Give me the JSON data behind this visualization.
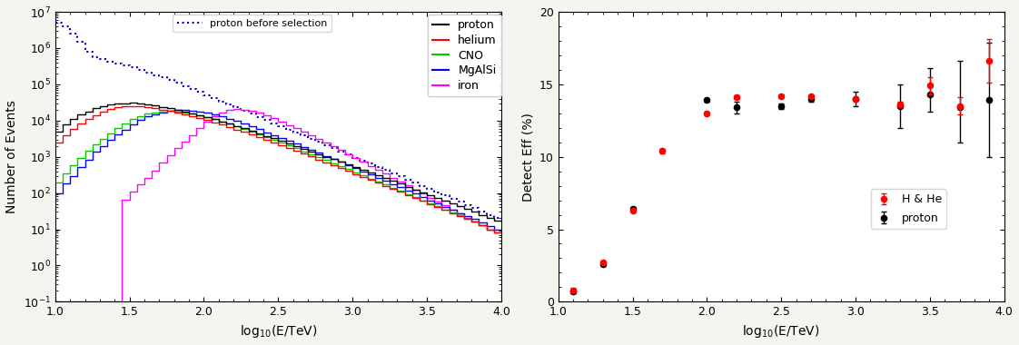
{
  "left_plot": {
    "xlabel": "log$_{10}$(E/TeV)",
    "ylabel": "Number of Events",
    "xlim": [
      1,
      4
    ],
    "ylim": [
      0.1,
      10000000.0
    ],
    "proton_before_bins": [
      1.0,
      1.05,
      1.1,
      1.15,
      1.2,
      1.25,
      1.3,
      1.35,
      1.4,
      1.45,
      1.5,
      1.55,
      1.6,
      1.65,
      1.7,
      1.75,
      1.8,
      1.85,
      1.9,
      1.95,
      2.0,
      2.05,
      2.1,
      2.15,
      2.2,
      2.25,
      2.3,
      2.35,
      2.4,
      2.45,
      2.5,
      2.55,
      2.6,
      2.65,
      2.7,
      2.75,
      2.8,
      2.85,
      2.9,
      2.95,
      3.0,
      3.05,
      3.1,
      3.15,
      3.2,
      3.25,
      3.3,
      3.35,
      3.4,
      3.45,
      3.5,
      3.55,
      3.6,
      3.65,
      3.7,
      3.75,
      3.8,
      3.85,
      3.9,
      3.95,
      4.0
    ],
    "proton_before_vals": [
      5000000.0,
      4000000.0,
      2500000.0,
      1500000.0,
      800000.0,
      550000.0,
      500000.0,
      430000.0,
      380000.0,
      330000.0,
      290000.0,
      250000.0,
      210000.0,
      180000.0,
      155000.0,
      130000.0,
      110000.0,
      90000.0,
      75000.0,
      62000.0,
      51000.0,
      42000.0,
      34000.0,
      28000.0,
      23000.0,
      19000.0,
      15500.0,
      12700.0,
      10400.0,
      8500.0,
      7000.0,
      5700.0,
      4700.0,
      3850.0,
      3150.0,
      2600.0,
      2100.0,
      1750.0,
      1420.0,
      1160.0,
      950.0,
      780.0,
      640.0,
      520.0,
      430.0,
      350.0,
      285.0,
      233.0,
      190.0,
      155.0,
      127.0,
      104.0,
      85.0,
      69.0,
      57.0,
      46.0,
      38.0,
      31.0,
      25.0,
      20.0
    ],
    "proton_bins": [
      1.0,
      1.05,
      1.1,
      1.15,
      1.2,
      1.25,
      1.3,
      1.35,
      1.4,
      1.45,
      1.5,
      1.55,
      1.6,
      1.65,
      1.7,
      1.75,
      1.8,
      1.85,
      1.9,
      1.95,
      2.0,
      2.05,
      2.1,
      2.15,
      2.2,
      2.25,
      2.3,
      2.35,
      2.4,
      2.45,
      2.5,
      2.55,
      2.6,
      2.65,
      2.7,
      2.75,
      2.8,
      2.85,
      2.9,
      2.95,
      3.0,
      3.05,
      3.1,
      3.15,
      3.2,
      3.25,
      3.3,
      3.35,
      3.4,
      3.45,
      3.5,
      3.55,
      3.6,
      3.65,
      3.7,
      3.75,
      3.8,
      3.85,
      3.9,
      3.95,
      4.0
    ],
    "proton_vals": [
      5000,
      8000,
      11000,
      14500,
      18000,
      22000,
      25000,
      27500,
      29000,
      30000,
      30500,
      29500,
      28000,
      26000,
      24000,
      22000,
      20000,
      18000,
      16000,
      14000,
      12500,
      11000,
      9500,
      8200,
      7100,
      6100,
      5200,
      4500,
      3800,
      3250,
      2750,
      2350,
      1980,
      1680,
      1420,
      1200,
      1010,
      855,
      720,
      605,
      510,
      430,
      360,
      305,
      255,
      215,
      180,
      150,
      126,
      106,
      89,
      74,
      62,
      52,
      43,
      36,
      30,
      25,
      21,
      17
    ],
    "helium_bins": [
      1.0,
      1.05,
      1.1,
      1.15,
      1.2,
      1.25,
      1.3,
      1.35,
      1.4,
      1.45,
      1.5,
      1.55,
      1.6,
      1.65,
      1.7,
      1.75,
      1.8,
      1.85,
      1.9,
      1.95,
      2.0,
      2.05,
      2.1,
      2.15,
      2.2,
      2.25,
      2.3,
      2.35,
      2.4,
      2.45,
      2.5,
      2.55,
      2.6,
      2.65,
      2.7,
      2.75,
      2.8,
      2.85,
      2.9,
      2.95,
      3.0,
      3.05,
      3.1,
      3.15,
      3.2,
      3.25,
      3.3,
      3.35,
      3.4,
      3.45,
      3.5,
      3.55,
      3.6,
      3.65,
      3.7,
      3.75,
      3.8,
      3.85,
      3.9,
      3.95,
      4.0
    ],
    "helium_vals": [
      2500,
      4000,
      6000,
      8500,
      11000,
      14000,
      17500,
      20500,
      23000,
      24500,
      25500,
      25000,
      23500,
      22000,
      20000,
      18500,
      17000,
      15000,
      13500,
      12000,
      10500,
      9000,
      7800,
      6700,
      5700,
      4900,
      4150,
      3500,
      2950,
      2480,
      2080,
      1750,
      1460,
      1220,
      1020,
      850,
      710,
      590,
      490,
      405,
      335,
      278,
      230,
      190,
      158,
      130,
      108,
      89,
      74,
      61,
      50,
      42,
      34,
      28,
      23,
      19,
      16,
      13,
      10,
      8
    ],
    "CNO_bins": [
      1.0,
      1.05,
      1.1,
      1.15,
      1.2,
      1.25,
      1.3,
      1.35,
      1.4,
      1.45,
      1.5,
      1.55,
      1.6,
      1.65,
      1.7,
      1.75,
      1.8,
      1.85,
      1.9,
      1.95,
      2.0,
      2.05,
      2.1,
      2.15,
      2.2,
      2.25,
      2.3,
      2.35,
      2.4,
      2.45,
      2.5,
      2.55,
      2.6,
      2.65,
      2.7,
      2.75,
      2.8,
      2.85,
      2.9,
      2.95,
      3.0,
      3.05,
      3.1,
      3.15,
      3.2,
      3.25,
      3.3,
      3.35,
      3.4,
      3.45,
      3.5,
      3.55,
      3.6,
      3.65,
      3.7,
      3.75,
      3.8,
      3.85,
      3.9,
      3.95,
      4.0
    ],
    "CNO_vals": [
      200,
      350,
      600,
      950,
      1500,
      2200,
      3200,
      4500,
      6200,
      8300,
      11000,
      13500,
      15500,
      17000,
      18000,
      18500,
      18000,
      17000,
      15500,
      14000,
      12500,
      11000,
      9500,
      8100,
      6900,
      5850,
      4950,
      4150,
      3500,
      2940,
      2460,
      2050,
      1710,
      1420,
      1180,
      980,
      810,
      670,
      550,
      455,
      375,
      308,
      253,
      208,
      170,
      140,
      115,
      94,
      77,
      63,
      52,
      43,
      35,
      29,
      24,
      19,
      16,
      13,
      10,
      8
    ],
    "MgAlSi_bins": [
      1.0,
      1.05,
      1.1,
      1.15,
      1.2,
      1.25,
      1.3,
      1.35,
      1.4,
      1.45,
      1.5,
      1.55,
      1.6,
      1.65,
      1.7,
      1.75,
      1.8,
      1.85,
      1.9,
      1.95,
      2.0,
      2.05,
      2.1,
      2.15,
      2.2,
      2.25,
      2.3,
      2.35,
      2.4,
      2.45,
      2.5,
      2.55,
      2.6,
      2.65,
      2.7,
      2.75,
      2.8,
      2.85,
      2.9,
      2.95,
      3.0,
      3.05,
      3.1,
      3.15,
      3.2,
      3.25,
      3.3,
      3.35,
      3.4,
      3.45,
      3.5,
      3.55,
      3.6,
      3.65,
      3.7,
      3.75,
      3.8,
      3.85,
      3.9,
      3.95,
      4.0
    ],
    "MgAlSi_vals": [
      100,
      180,
      300,
      520,
      850,
      1350,
      2000,
      2900,
      4100,
      5700,
      7800,
      10500,
      13000,
      15000,
      17000,
      18500,
      19500,
      19500,
      19000,
      18000,
      16500,
      15000,
      13000,
      11200,
      9600,
      8100,
      6850,
      5750,
      4800,
      4000,
      3330,
      2770,
      2300,
      1900,
      1570,
      1295,
      1065,
      875,
      718,
      590,
      483,
      394,
      322,
      263,
      215,
      175,
      143,
      116,
      95,
      77,
      63,
      51,
      42,
      34,
      28,
      23,
      19,
      15,
      12,
      10
    ],
    "iron_bins": [
      1.0,
      1.05,
      1.1,
      1.15,
      1.2,
      1.25,
      1.3,
      1.35,
      1.4,
      1.45,
      1.5,
      1.55,
      1.6,
      1.65,
      1.7,
      1.75,
      1.8,
      1.85,
      1.9,
      1.95,
      2.0,
      2.05,
      2.1,
      2.15,
      2.2,
      2.25,
      2.3,
      2.35,
      2.4,
      2.45,
      2.5,
      2.55,
      2.6,
      2.65,
      2.7,
      2.75,
      2.8,
      2.85,
      2.9,
      2.95,
      3.0,
      3.05,
      3.1,
      3.15,
      3.2,
      3.25,
      3.3,
      3.35,
      3.4,
      3.45,
      3.5,
      3.55,
      3.6,
      3.65,
      3.7,
      3.75,
      3.8,
      3.85,
      3.9,
      3.95,
      4.0
    ],
    "iron_vals": [
      0.1,
      0.1,
      0.1,
      0.1,
      0.1,
      0.1,
      0.1,
      0.1,
      0.1,
      65,
      110,
      170,
      260,
      420,
      700,
      1100,
      1700,
      2600,
      4000,
      6200,
      9500,
      13500,
      17000,
      19500,
      20500,
      20000,
      18500,
      16500,
      14000,
      11500,
      9400,
      7600,
      6100,
      4900,
      3900,
      3100,
      2450,
      1930,
      1520,
      1190,
      935,
      728,
      567,
      440,
      342,
      266,
      207,
      161,
      125,
      97,
      75,
      58,
      45,
      35,
      27,
      21,
      16,
      13,
      10,
      8
    ]
  },
  "right_plot": {
    "xlabel": "log$_{10}$(E/TeV)",
    "ylabel": "Detect Eff (%)",
    "xlim": [
      1,
      4
    ],
    "ylim": [
      0,
      20
    ],
    "HHe_x": [
      1.1,
      1.3,
      1.5,
      1.7,
      2.0,
      2.2,
      2.5,
      2.7,
      3.0,
      3.3,
      3.5,
      3.7,
      3.9
    ],
    "HHe_y": [
      0.8,
      2.7,
      6.3,
      10.4,
      13.0,
      14.1,
      14.2,
      14.15,
      14.0,
      13.6,
      14.9,
      13.5,
      16.6
    ],
    "HHe_yerr": [
      0.15,
      0.1,
      0.1,
      0.15,
      0.1,
      0.12,
      0.1,
      0.1,
      0.1,
      0.2,
      0.6,
      0.6,
      1.5
    ],
    "proton_x": [
      1.1,
      1.3,
      1.5,
      2.0,
      2.2,
      2.5,
      2.7,
      3.0,
      3.3,
      3.5,
      3.7,
      3.9
    ],
    "proton_y": [
      0.7,
      2.6,
      6.4,
      13.9,
      13.4,
      13.5,
      14.0,
      14.0,
      13.5,
      14.3,
      13.4,
      13.9
    ],
    "proton_yerr_lo": [
      0.1,
      0.1,
      0.15,
      0.12,
      0.4,
      0.2,
      0.2,
      0.5,
      1.5,
      1.2,
      2.4,
      3.9
    ],
    "proton_yerr_hi": [
      0.1,
      0.1,
      0.15,
      0.12,
      0.4,
      0.2,
      0.2,
      0.5,
      1.5,
      1.8,
      3.2,
      4.0
    ]
  },
  "fig_bg": "#f5f5f0",
  "ax_bg": "#ffffff"
}
